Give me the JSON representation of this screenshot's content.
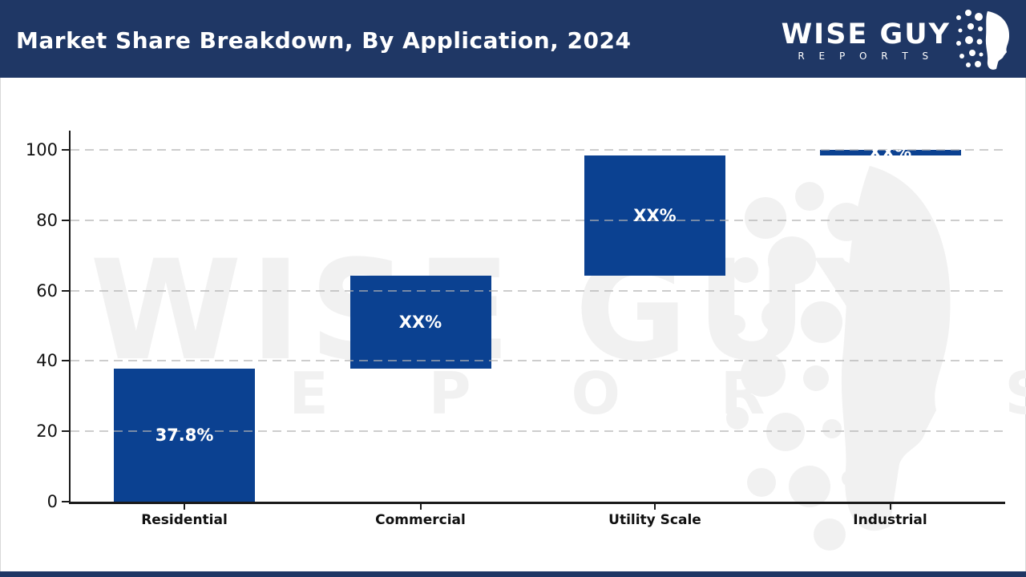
{
  "header": {
    "title": "Market Share Breakdown, By Application, 2024",
    "logo": {
      "line1": "WISE GUY",
      "line2": "R E P O R T S"
    }
  },
  "watermark": {
    "line1": "WISE GUY",
    "line2": "R E P O R T S"
  },
  "colors": {
    "header_bg": "#1f3765",
    "footer_bg": "#1f3765",
    "bar": "#0b4191",
    "bar_label": "#ffffff",
    "grid": "#b2b2b2",
    "axis": "#1a1a1a",
    "watermark": "#f1f1f1"
  },
  "chart_data": {
    "type": "bar",
    "subtype": "cumulative-waterfall",
    "title": "Market Share Breakdown, By Application, 2024",
    "categories": [
      "Residential",
      "Commercial",
      "Utility Scale",
      "Industrial"
    ],
    "bars": [
      {
        "category": "Residential",
        "start": 0,
        "end": 37.8,
        "value": 37.8,
        "value_label": "37.8%"
      },
      {
        "category": "Commercial",
        "start": 37.8,
        "end": 64.2,
        "value": 26.4,
        "value_label": "XX%"
      },
      {
        "category": "Utility Scale",
        "start": 64.2,
        "end": 98.5,
        "value": 34.3,
        "value_label": "XX%"
      },
      {
        "category": "Industrial",
        "start": 98.5,
        "end": 100,
        "value": 1.5,
        "value_label": "XX%"
      }
    ],
    "yticks": [
      0,
      20,
      40,
      60,
      80,
      100
    ],
    "ylim": [
      0,
      105
    ],
    "xlabel": "",
    "ylabel": "",
    "grid": "horizontal-dashed",
    "legend": "none"
  }
}
